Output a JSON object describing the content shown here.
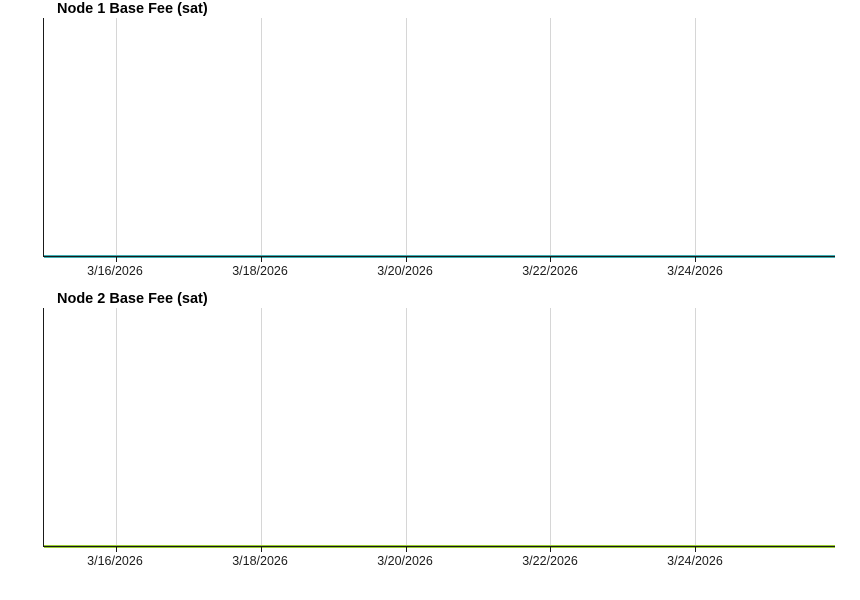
{
  "page": {
    "background": "#ffffff",
    "axis_color": "#1a1a1a",
    "gridline_color": "#d6d6d6",
    "label_color": "#1c1c1c"
  },
  "chart_data": [
    {
      "type": "line",
      "title": "Node 1 Base Fee (sat)",
      "xlabel": "",
      "ylabel": "",
      "x_ticks": [
        "3/16/2026",
        "3/18/2026",
        "3/20/2026",
        "3/22/2026",
        "3/24/2026"
      ],
      "x_range": [
        "3/15/2026",
        "3/26/2026"
      ],
      "ylim": [
        0,
        null
      ],
      "grid": "vertical-only",
      "legend": "none",
      "y_axis_labels": "none",
      "series": [
        {
          "name": "Node 1 Base Fee (sat)",
          "color": "#40b0b4",
          "x": [
            "3/16/2026",
            "3/18/2026",
            "3/20/2026",
            "3/22/2026",
            "3/24/2026"
          ],
          "values": [
            0,
            0,
            0,
            0,
            0
          ],
          "note": "constant 0 across entire date range; line lies flat on the x-axis"
        }
      ]
    },
    {
      "type": "line",
      "title": "Node 2 Base Fee (sat)",
      "xlabel": "",
      "ylabel": "",
      "x_ticks": [
        "3/16/2026",
        "3/18/2026",
        "3/20/2026",
        "3/22/2026",
        "3/24/2026"
      ],
      "x_range": [
        "3/15/2026",
        "3/26/2026"
      ],
      "ylim": [
        0,
        null
      ],
      "grid": "vertical-only",
      "legend": "none",
      "y_axis_labels": "none",
      "series": [
        {
          "name": "Node 2 Base Fee (sat)",
          "color": "#9acd32",
          "x": [
            "3/16/2026",
            "3/18/2026",
            "3/20/2026",
            "3/22/2026",
            "3/24/2026"
          ],
          "values": [
            0,
            0,
            0,
            0,
            0
          ],
          "note": "constant 0 across entire date range; line lies flat on the x-axis"
        }
      ]
    }
  ]
}
